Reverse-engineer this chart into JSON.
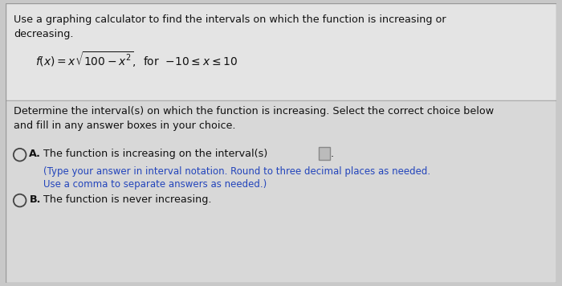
{
  "bg_color": "#c8c8c8",
  "panel_color": "#e2e2e2",
  "title_line1": "Use a graphing calculator to find the intervals on which the function is increasing or",
  "title_line2": "decreasing.",
  "divider_color": "#aaaaaa",
  "body_line1": "Determine the interval(s) on which the function is increasing. Select the correct choice below",
  "body_line2": "and fill in any answer boxes in your choice.",
  "option_a_label": "A.",
  "option_a_text": "The function is increasing on the interval(s)",
  "option_a_sub1": "(Type your answer in interval notation. Round to three decimal places as needed.",
  "option_a_sub2": "Use a comma to separate answers as needed.)",
  "option_b_label": "B.",
  "option_b_text": "The function is never increasing.",
  "text_color": "#111111",
  "blue_color": "#2244bb",
  "circle_color": "#444444",
  "box_border_color": "#888888",
  "box_fill_color": "#bbbbbb",
  "font_size_main": 9.2,
  "font_size_sub": 8.5,
  "font_size_formula": 10.0
}
